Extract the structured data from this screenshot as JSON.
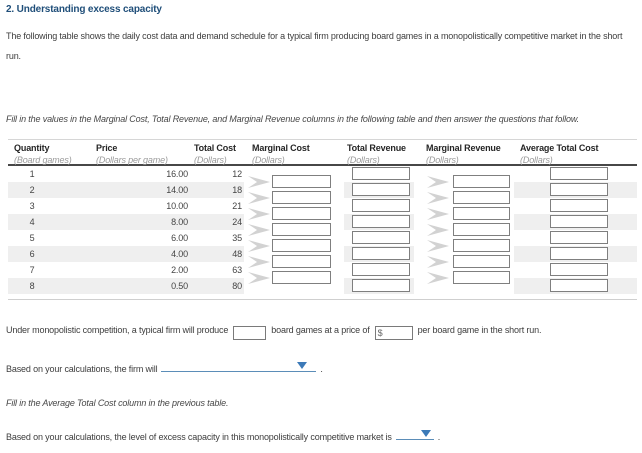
{
  "page": {
    "title": "2. Understanding excess capacity"
  },
  "intro": "The following table shows the daily cost data and demand schedule for a typical firm producing board games in a monopolistically competitive market in the short run.",
  "instruction_fill": "Fill in the values in the Marginal Cost, Total Revenue, and Marginal Revenue columns in the following table and then answer the questions that follow.",
  "table": {
    "columns": [
      {
        "label": "Quantity",
        "sublabel": "(Board games)"
      },
      {
        "label": "Price",
        "sublabel": "(Dollars per game)"
      },
      {
        "label": "Total Cost",
        "sublabel": "(Dollars)"
      },
      {
        "label": "Marginal Cost",
        "sublabel": "(Dollars)"
      },
      {
        "label": "Total Revenue",
        "sublabel": "(Dollars)"
      },
      {
        "label": "Marginal Revenue",
        "sublabel": "(Dollars)"
      },
      {
        "label": "Average Total Cost",
        "sublabel": "(Dollars)"
      }
    ],
    "rows": [
      {
        "quantity": "1",
        "price": "16.00",
        "total_cost": "12"
      },
      {
        "quantity": "2",
        "price": "14.00",
        "total_cost": "18"
      },
      {
        "quantity": "3",
        "price": "10.00",
        "total_cost": "21"
      },
      {
        "quantity": "4",
        "price": "8.00",
        "total_cost": "24"
      },
      {
        "quantity": "5",
        "price": "6.00",
        "total_cost": "35"
      },
      {
        "quantity": "6",
        "price": "4.00",
        "total_cost": "48"
      },
      {
        "quantity": "7",
        "price": "2.00",
        "total_cost": "63"
      },
      {
        "quantity": "8",
        "price": "0.50",
        "total_cost": "80"
      }
    ],
    "input_values": {
      "marginal_cost": [
        "",
        "",
        "",
        "",
        "",
        "",
        ""
      ],
      "total_revenue": [
        "",
        "",
        "",
        "",
        "",
        "",
        "",
        ""
      ],
      "marginal_revenue": [
        "",
        "",
        "",
        "",
        "",
        "",
        ""
      ],
      "average_total_cost": [
        "",
        "",
        "",
        "",
        "",
        "",
        "",
        ""
      ]
    }
  },
  "question_produce": {
    "part1": "Under monopolistic competition, a typical firm will produce",
    "produce_value": "",
    "part2": "board games at a price of",
    "currency_symbol": "$",
    "price_value": "",
    "part3": "per board game in the short run."
  },
  "question_firm_will": {
    "text": "Based on your calculations, the firm will",
    "selected": "",
    "period": "."
  },
  "instruction_atc": "Fill in the Average Total Cost column in the previous table.",
  "question_excess": {
    "text": "Based on your calculations, the level of excess capacity in this monopolistically competitive market is",
    "selected": "",
    "period": "."
  },
  "colors": {
    "title_blue": "#1f4e79",
    "dropdown_blue": "#3c7ab8",
    "stripe_gray": "#efefef",
    "box_border": "#7f7f7f",
    "chevron_gray": "#d2d2d2"
  }
}
